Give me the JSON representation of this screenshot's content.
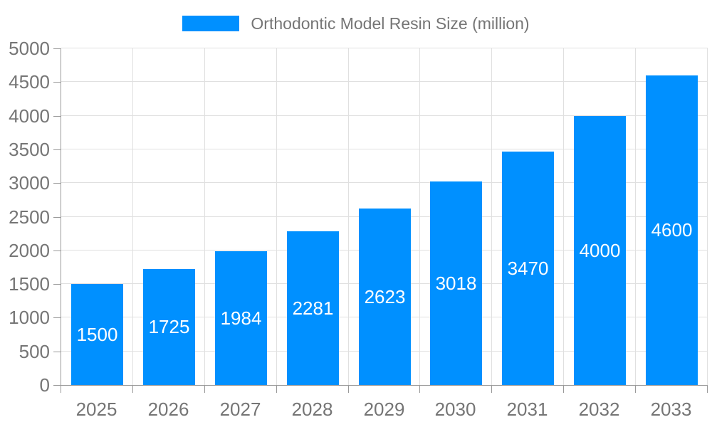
{
  "page": {
    "background": "#ffffff"
  },
  "legend": {
    "label": "Orthodontic Model Resin Size (million)"
  },
  "chart_data": {
    "type": "bar",
    "title": "Orthodontic Model Resin Size (million)",
    "categories": [
      "2025",
      "2026",
      "2027",
      "2028",
      "2029",
      "2030",
      "2031",
      "2032",
      "2033"
    ],
    "values": [
      1500,
      1725,
      1984,
      2281,
      2623,
      3018,
      3470,
      4000,
      4600
    ],
    "xlabel": "",
    "ylabel": "",
    "ylim": [
      0,
      5000
    ],
    "y_ticks": [
      0,
      500,
      1000,
      1500,
      2000,
      2500,
      3000,
      3500,
      4000,
      4500,
      5000
    ],
    "grid": true,
    "legend_position": "top-center",
    "bar_label_position": "center-inside",
    "colors": {
      "bar": "#0090ff",
      "bar_label": "#ffffff",
      "axis_text": "#757575",
      "grid_line": "#e0e0e0",
      "axis_line": "#999999"
    }
  }
}
